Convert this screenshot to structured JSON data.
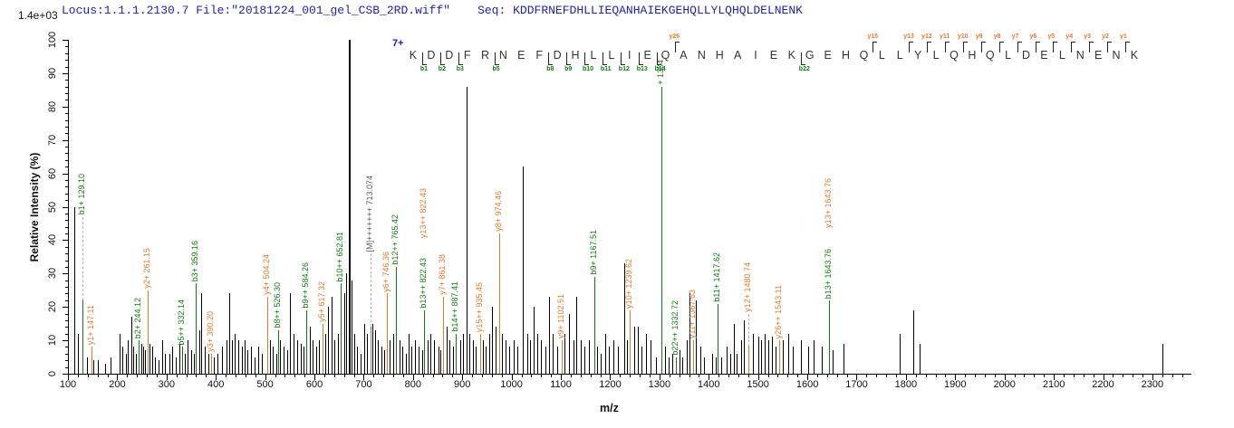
{
  "header": {
    "locus_file": "Locus:1.1.1.2130.7 File:\"20181224_001_gel_CSB_2RD.wiff\"",
    "seq_label": "Seq:",
    "sequence": "KDDFRNEFDHLLIEQANHAIEKGEHQLLYLQHQLDELNENK"
  },
  "annotations": {
    "precursor_charge": "7+"
  },
  "colors": {
    "b_ion": "#0f7d0f",
    "y_ion": "#e07a2e",
    "background_peak": "#000000",
    "precursor": "#5a5a5a",
    "header_text": "#2323a8",
    "charge_label": "#1a1acc"
  },
  "y_axis": {
    "title": "Relative  Intensity (%)",
    "scale_label": "1.4e+03",
    "min": 0,
    "max": 100,
    "major_step": 10,
    "minor_step": 2
  },
  "x_axis": {
    "title": "m/z",
    "min": 100,
    "max": 2370,
    "major_step": 100,
    "minor_step": 20,
    "last_label": 2300
  },
  "chart_data": {
    "type": "bar",
    "subtype": "ms2-fragmentation-spectrum",
    "title": "",
    "xlabel": "m/z",
    "ylabel": "Relative  Intensity (%)",
    "xlim": [
      100,
      2370
    ],
    "ylim": [
      0,
      100
    ],
    "intensity_scale": "1.4e+03",
    "labeled_peaks": [
      {
        "mz": 129.1,
        "intensity": 22,
        "ion": "b1+",
        "label": "b1+ 129.10",
        "series": "b",
        "dash_to": 47
      },
      {
        "mz": 147.11,
        "intensity": 8,
        "ion": "y1+",
        "label": "y1+ 147.11",
        "series": "y"
      },
      {
        "mz": 244.12,
        "intensity": 10,
        "ion": "b2+",
        "label": "b2+ 244.12",
        "series": "b"
      },
      {
        "mz": 261.15,
        "intensity": 25,
        "ion": "y2+",
        "label": "y2+ 261.15",
        "series": "y"
      },
      {
        "mz": 332.14,
        "intensity": 8,
        "ion": "b5++",
        "label": "b5++ 332.14",
        "series": "b"
      },
      {
        "mz": 359.16,
        "intensity": 27,
        "ion": "b3+",
        "label": "b3+ 359.16",
        "series": "b"
      },
      {
        "mz": 390.2,
        "intensity": 6,
        "ion": "y3+",
        "label": "y3+ 390.20",
        "series": "y"
      },
      {
        "mz": 504.24,
        "intensity": 23,
        "ion": "y4+",
        "label": "y4+ 504.24",
        "series": "y"
      },
      {
        "mz": 526.3,
        "intensity": 13,
        "ion": "b8++",
        "label": "b8++ 526.30",
        "series": "b"
      },
      {
        "mz": 584.26,
        "intensity": 19,
        "ion": "b9++",
        "label": "b9++ 584.26",
        "series": "b"
      },
      {
        "mz": 617.32,
        "intensity": 15,
        "ion": "y5+",
        "label": "y5+ 617.32",
        "series": "y"
      },
      {
        "mz": 652.81,
        "intensity": 27,
        "ion": "b10++",
        "label": "b10++ 652.81",
        "series": "b"
      },
      {
        "mz": 713.074,
        "intensity": 14,
        "ion": "[M]7+",
        "label": "[M]+++++++ 713.074",
        "series": "precursor",
        "dash_to": 36
      },
      {
        "mz": 746.36,
        "intensity": 24,
        "ion": "y6+",
        "label": "y6+ 746.36",
        "series": "y"
      },
      {
        "mz": 765.42,
        "intensity": 32,
        "ion": "b12++",
        "label": "b12++ 765.42",
        "series": "b"
      },
      {
        "mz": 822.43,
        "intensity": 19,
        "ion": "b13++",
        "label": "b13++ 822.43",
        "series": "b",
        "label2": "y13++ 822.43",
        "label2_series": "y"
      },
      {
        "mz": 861.38,
        "intensity": 23,
        "ion": "y7+",
        "label": "y7+ 861.38",
        "series": "y"
      },
      {
        "mz": 887.41,
        "intensity": 12,
        "ion": "b14++",
        "label": "b14++ 887.41",
        "series": "b"
      },
      {
        "mz": 935.45,
        "intensity": 12,
        "ion": "y15++",
        "label": "y15++ 935.45",
        "series": "y"
      },
      {
        "mz": 974.46,
        "intensity": 42,
        "ion": "y8+",
        "label": "y8+ 974.46",
        "series": "y"
      },
      {
        "mz": 1102.51,
        "intensity": 10,
        "ion": "y9+",
        "label": "y9+ 1102.51",
        "series": "y"
      },
      {
        "mz": 1167.51,
        "intensity": 29,
        "ion": "b9+",
        "label": "b9+ 1167.51",
        "series": "b"
      },
      {
        "mz": 1239.62,
        "intensity": 19,
        "ion": "y10+",
        "label": "y10+ 1239.62",
        "series": "y"
      },
      {
        "mz": 1304,
        "intensity": 86,
        "ion": "b10+",
        "label": "+ 1304",
        "series": "b"
      },
      {
        "mz": 1332.72,
        "intensity": 5,
        "ion": "b22++",
        "label": "b22++ 1332.72",
        "series": "b"
      },
      {
        "mz": 1367.63,
        "intensity": 10,
        "ion": "y11+",
        "label": "y11+ 1367.63",
        "series": "y"
      },
      {
        "mz": 1417.62,
        "intensity": 21,
        "ion": "b11+",
        "label": "b11+ 1417.62",
        "series": "b"
      },
      {
        "mz": 1480.74,
        "intensity": 8,
        "ion": "y12+",
        "label": "y12+ 1480.74",
        "series": "y",
        "dash_to": 18
      },
      {
        "mz": 1543.11,
        "intensity": 10,
        "ion": "y26++",
        "label": "y26++ 1543.11",
        "series": "y"
      },
      {
        "mz": 1643.76,
        "intensity": 22,
        "ion": "b13+",
        "label": "b13+ 1643.76",
        "series": "b",
        "label2": "y13+ 1643.76",
        "label2_series": "y"
      }
    ],
    "background_peaks": [
      [
        113,
        50
      ],
      [
        121,
        12
      ],
      [
        139,
        5
      ],
      [
        152,
        4
      ],
      [
        160,
        4
      ],
      [
        175,
        3
      ],
      [
        187,
        5
      ],
      [
        205,
        12
      ],
      [
        211,
        8
      ],
      [
        217,
        6
      ],
      [
        222,
        10
      ],
      [
        228,
        17
      ],
      [
        233,
        8
      ],
      [
        238,
        6
      ],
      [
        248,
        9
      ],
      [
        253,
        8
      ],
      [
        257,
        7
      ],
      [
        266,
        9
      ],
      [
        271,
        8
      ],
      [
        277,
        5
      ],
      [
        284,
        4
      ],
      [
        291,
        10
      ],
      [
        297,
        6
      ],
      [
        305,
        6
      ],
      [
        311,
        8
      ],
      [
        318,
        5
      ],
      [
        326,
        9
      ],
      [
        337,
        6
      ],
      [
        343,
        10
      ],
      [
        350,
        7
      ],
      [
        356,
        6
      ],
      [
        366,
        13
      ],
      [
        371,
        24
      ],
      [
        377,
        8
      ],
      [
        384,
        6
      ],
      [
        396,
        5
      ],
      [
        404,
        6
      ],
      [
        412,
        8
      ],
      [
        421,
        10
      ],
      [
        428,
        24
      ],
      [
        433,
        10
      ],
      [
        439,
        12
      ],
      [
        445,
        10
      ],
      [
        452,
        8
      ],
      [
        458,
        10
      ],
      [
        464,
        7
      ],
      [
        471,
        8
      ],
      [
        478,
        5
      ],
      [
        486,
        8
      ],
      [
        493,
        6
      ],
      [
        509,
        10
      ],
      [
        516,
        8
      ],
      [
        523,
        6
      ],
      [
        531,
        10
      ],
      [
        538,
        8
      ],
      [
        544,
        7
      ],
      [
        551,
        24
      ],
      [
        558,
        12
      ],
      [
        565,
        10
      ],
      [
        572,
        9
      ],
      [
        578,
        8
      ],
      [
        590,
        14
      ],
      [
        596,
        10
      ],
      [
        603,
        8
      ],
      [
        609,
        10
      ],
      [
        622,
        12
      ],
      [
        628,
        20
      ],
      [
        634,
        23
      ],
      [
        641,
        10
      ],
      [
        647,
        12
      ],
      [
        660,
        24
      ],
      [
        664,
        30
      ],
      [
        670,
        100
      ],
      [
        675,
        28
      ],
      [
        681,
        12
      ],
      [
        687,
        8
      ],
      [
        694,
        6
      ],
      [
        701,
        15
      ],
      [
        706,
        12
      ],
      [
        718,
        15
      ],
      [
        723,
        13
      ],
      [
        729,
        10
      ],
      [
        736,
        8
      ],
      [
        741,
        7
      ],
      [
        753,
        10
      ],
      [
        759,
        12
      ],
      [
        772,
        10
      ],
      [
        778,
        8
      ],
      [
        785,
        6
      ],
      [
        791,
        12
      ],
      [
        797,
        8
      ],
      [
        804,
        10
      ],
      [
        812,
        8
      ],
      [
        818,
        7
      ],
      [
        829,
        10
      ],
      [
        836,
        12
      ],
      [
        843,
        10
      ],
      [
        852,
        8
      ],
      [
        856,
        7
      ],
      [
        868,
        14
      ],
      [
        874,
        10
      ],
      [
        881,
        8
      ],
      [
        895,
        10
      ],
      [
        901,
        12
      ],
      [
        908,
        86
      ],
      [
        915,
        12
      ],
      [
        921,
        10
      ],
      [
        928,
        8
      ],
      [
        941,
        10
      ],
      [
        948,
        8
      ],
      [
        955,
        12
      ],
      [
        961,
        20
      ],
      [
        967,
        14
      ],
      [
        981,
        12
      ],
      [
        988,
        10
      ],
      [
        996,
        8
      ],
      [
        1004,
        10
      ],
      [
        1012,
        8
      ],
      [
        1023,
        62
      ],
      [
        1031,
        12
      ],
      [
        1038,
        10
      ],
      [
        1045,
        20
      ],
      [
        1052,
        12
      ],
      [
        1060,
        10
      ],
      [
        1068,
        8
      ],
      [
        1076,
        23
      ],
      [
        1084,
        12
      ],
      [
        1092,
        8
      ],
      [
        1108,
        12
      ],
      [
        1117,
        18
      ],
      [
        1126,
        10
      ],
      [
        1131,
        23
      ],
      [
        1140,
        10
      ],
      [
        1148,
        8
      ],
      [
        1156,
        10
      ],
      [
        1174,
        8
      ],
      [
        1181,
        6
      ],
      [
        1190,
        12
      ],
      [
        1198,
        8
      ],
      [
        1207,
        10
      ],
      [
        1216,
        8
      ],
      [
        1228,
        33
      ],
      [
        1234,
        10
      ],
      [
        1248,
        14
      ],
      [
        1256,
        14
      ],
      [
        1264,
        8
      ],
      [
        1272,
        12
      ],
      [
        1281,
        10
      ],
      [
        1292,
        5
      ],
      [
        1312,
        8
      ],
      [
        1318,
        5
      ],
      [
        1326,
        6
      ],
      [
        1340,
        7
      ],
      [
        1347,
        5
      ],
      [
        1356,
        10
      ],
      [
        1361,
        24
      ],
      [
        1374,
        22
      ],
      [
        1383,
        8
      ],
      [
        1391,
        5
      ],
      [
        1406,
        6
      ],
      [
        1414,
        5
      ],
      [
        1426,
        5
      ],
      [
        1436,
        8
      ],
      [
        1443,
        6
      ],
      [
        1451,
        15
      ],
      [
        1457,
        6
      ],
      [
        1466,
        10
      ],
      [
        1471,
        16
      ],
      [
        1490,
        12
      ],
      [
        1500,
        11
      ],
      [
        1506,
        10
      ],
      [
        1513,
        12
      ],
      [
        1521,
        10
      ],
      [
        1529,
        11
      ],
      [
        1536,
        8
      ],
      [
        1551,
        10
      ],
      [
        1561,
        12
      ],
      [
        1570,
        8
      ],
      [
        1587,
        10
      ],
      [
        1601,
        8
      ],
      [
        1612,
        10
      ],
      [
        1630,
        8
      ],
      [
        1652,
        7
      ],
      [
        1673,
        9
      ],
      [
        1787,
        12
      ],
      [
        1815,
        19
      ],
      [
        1828,
        9
      ],
      [
        2320,
        9
      ]
    ],
    "sequence_ladder": {
      "precursor_charge": "7+",
      "residues": [
        {
          "a": "K"
        },
        {
          "a": "D",
          "b": "b1"
        },
        {
          "a": "D",
          "b": "b2"
        },
        {
          "a": "F",
          "b": "b3"
        },
        {
          "a": "R"
        },
        {
          "a": "N",
          "b": "b5"
        },
        {
          "a": "E"
        },
        {
          "a": "F"
        },
        {
          "a": "D",
          "b": "b8"
        },
        {
          "a": "H",
          "b": "b9"
        },
        {
          "a": "L",
          "b": "b10"
        },
        {
          "a": "L",
          "b": "b11"
        },
        {
          "a": "I",
          "b": "b12"
        },
        {
          "a": "E",
          "b": "b13"
        },
        {
          "a": "Q",
          "b": "b14"
        },
        {
          "a": "A",
          "y": "y26"
        },
        {
          "a": "N"
        },
        {
          "a": "H"
        },
        {
          "a": "A"
        },
        {
          "a": "I"
        },
        {
          "a": "E"
        },
        {
          "a": "K"
        },
        {
          "a": "G",
          "b": "b22"
        },
        {
          "a": "E"
        },
        {
          "a": "H"
        },
        {
          "a": "Q"
        },
        {
          "a": "L",
          "y": "y15"
        },
        {
          "a": "L"
        },
        {
          "a": "Y",
          "y": "y13"
        },
        {
          "a": "L",
          "y": "y12"
        },
        {
          "a": "Q",
          "y": "y11"
        },
        {
          "a": "H",
          "y": "y10"
        },
        {
          "a": "Q",
          "y": "y9"
        },
        {
          "a": "L",
          "y": "y8"
        },
        {
          "a": "D",
          "y": "y7"
        },
        {
          "a": "E",
          "y": "y6"
        },
        {
          "a": "L",
          "y": "y5"
        },
        {
          "a": "N",
          "y": "y4"
        },
        {
          "a": "E",
          "y": "y3"
        },
        {
          "a": "N",
          "y": "y2"
        },
        {
          "a": "K",
          "y": "y1"
        }
      ]
    }
  }
}
